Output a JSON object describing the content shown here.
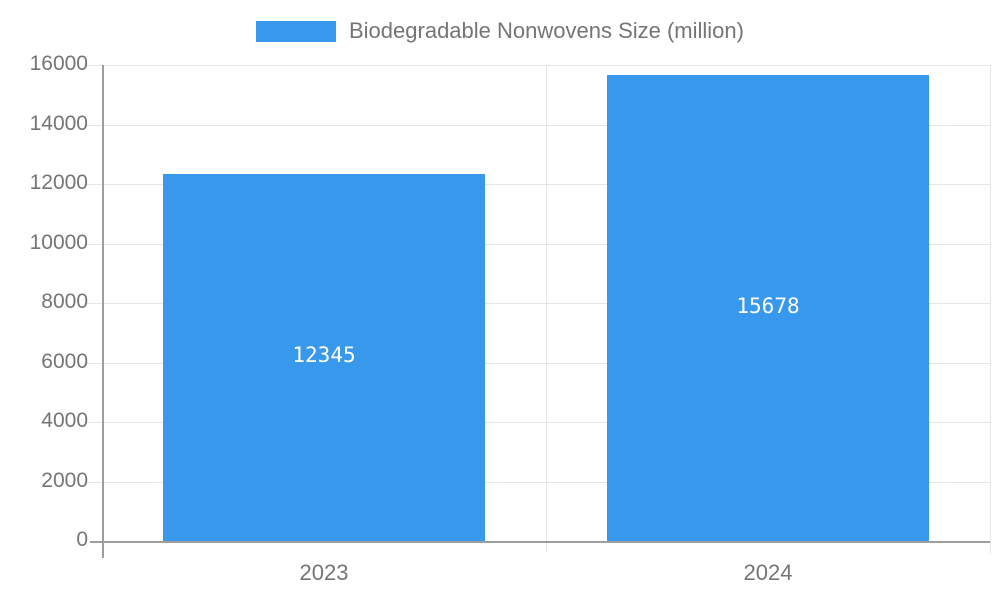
{
  "legend": {
    "label": "Biodegradable Nonwovens Size (million)",
    "swatch_color": "#3899ec",
    "position": "top"
  },
  "chart_data": {
    "type": "bar",
    "title": "",
    "xlabel": "",
    "ylabel": "",
    "categories": [
      "2023",
      "2024"
    ],
    "series": [
      {
        "name": "Biodegradable Nonwovens Size (million)",
        "values": [
          12345,
          15678
        ]
      }
    ],
    "bar_labels": [
      "12345",
      "15678"
    ],
    "ylim": [
      0,
      16000
    ],
    "yticks": [
      0,
      2000,
      4000,
      6000,
      8000,
      10000,
      12000,
      14000,
      16000
    ],
    "grid": true,
    "legend_position": "top",
    "colors": {
      "bar": "#3899ec",
      "grid": "#e6e6e6",
      "axis": "#9e9e9e",
      "tick_label": "#757575",
      "bar_label": "#ffffff",
      "background": "#ffffff"
    }
  }
}
